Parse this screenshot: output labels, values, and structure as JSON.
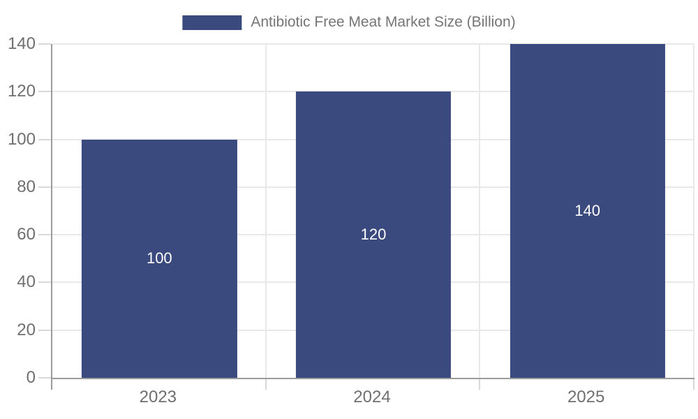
{
  "legend": {
    "label": "Antibiotic Free Meat Market Size (Billion)"
  },
  "chart_data": {
    "type": "bar",
    "title": "",
    "xlabel": "",
    "ylabel": "",
    "categories": [
      "2023",
      "2024",
      "2025"
    ],
    "values": [
      100,
      120,
      140
    ],
    "bar_value_labels": [
      "100",
      "120",
      "140"
    ],
    "series_name": "Antibiotic Free Meat Market Size (Billion)",
    "ylim": [
      0,
      140
    ],
    "yticks": [
      0,
      20,
      40,
      60,
      80,
      100,
      120,
      140
    ],
    "grid": "on",
    "legend_position": "top-center",
    "colors": {
      "bar": "#3a4a7e",
      "grid": "#e8e8e8",
      "axis": "#9b9b9b",
      "tick_dash": "#d9d9d9",
      "tick_text": "#6f6f6f",
      "bar_label_text": "#ffffff",
      "legend_text": "#757575",
      "background": "#ffffff"
    }
  }
}
